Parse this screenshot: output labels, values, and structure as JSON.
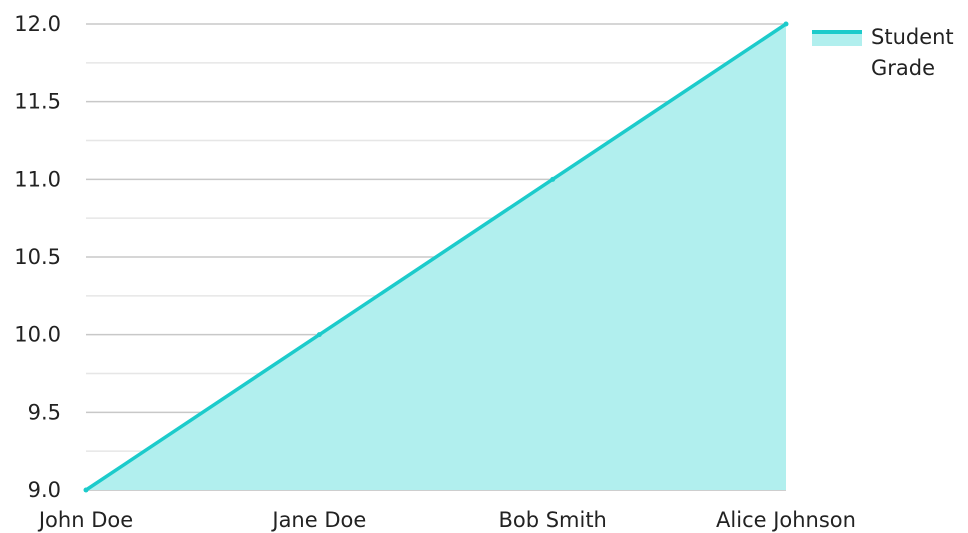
{
  "colors": {
    "line": "#1ccbcb",
    "fill": "#b1efee",
    "grid_major": "#c8c8c8",
    "grid_minor": "#e6e6e6",
    "axis": "#bdbdbd"
  },
  "chart_data": {
    "type": "area",
    "categories": [
      "John Doe",
      "Jane Doe",
      "Bob Smith",
      "Alice Johnson"
    ],
    "series": [
      {
        "name": "Student Grade",
        "values": [
          9.0,
          10.0,
          11.0,
          12.0
        ]
      }
    ],
    "y_ticks": [
      "9.0",
      "9.5",
      "10.0",
      "10.5",
      "11.0",
      "11.5",
      "12.0"
    ],
    "ylim": [
      9.0,
      12.0
    ],
    "grid": true,
    "legend_position": "top-right"
  }
}
